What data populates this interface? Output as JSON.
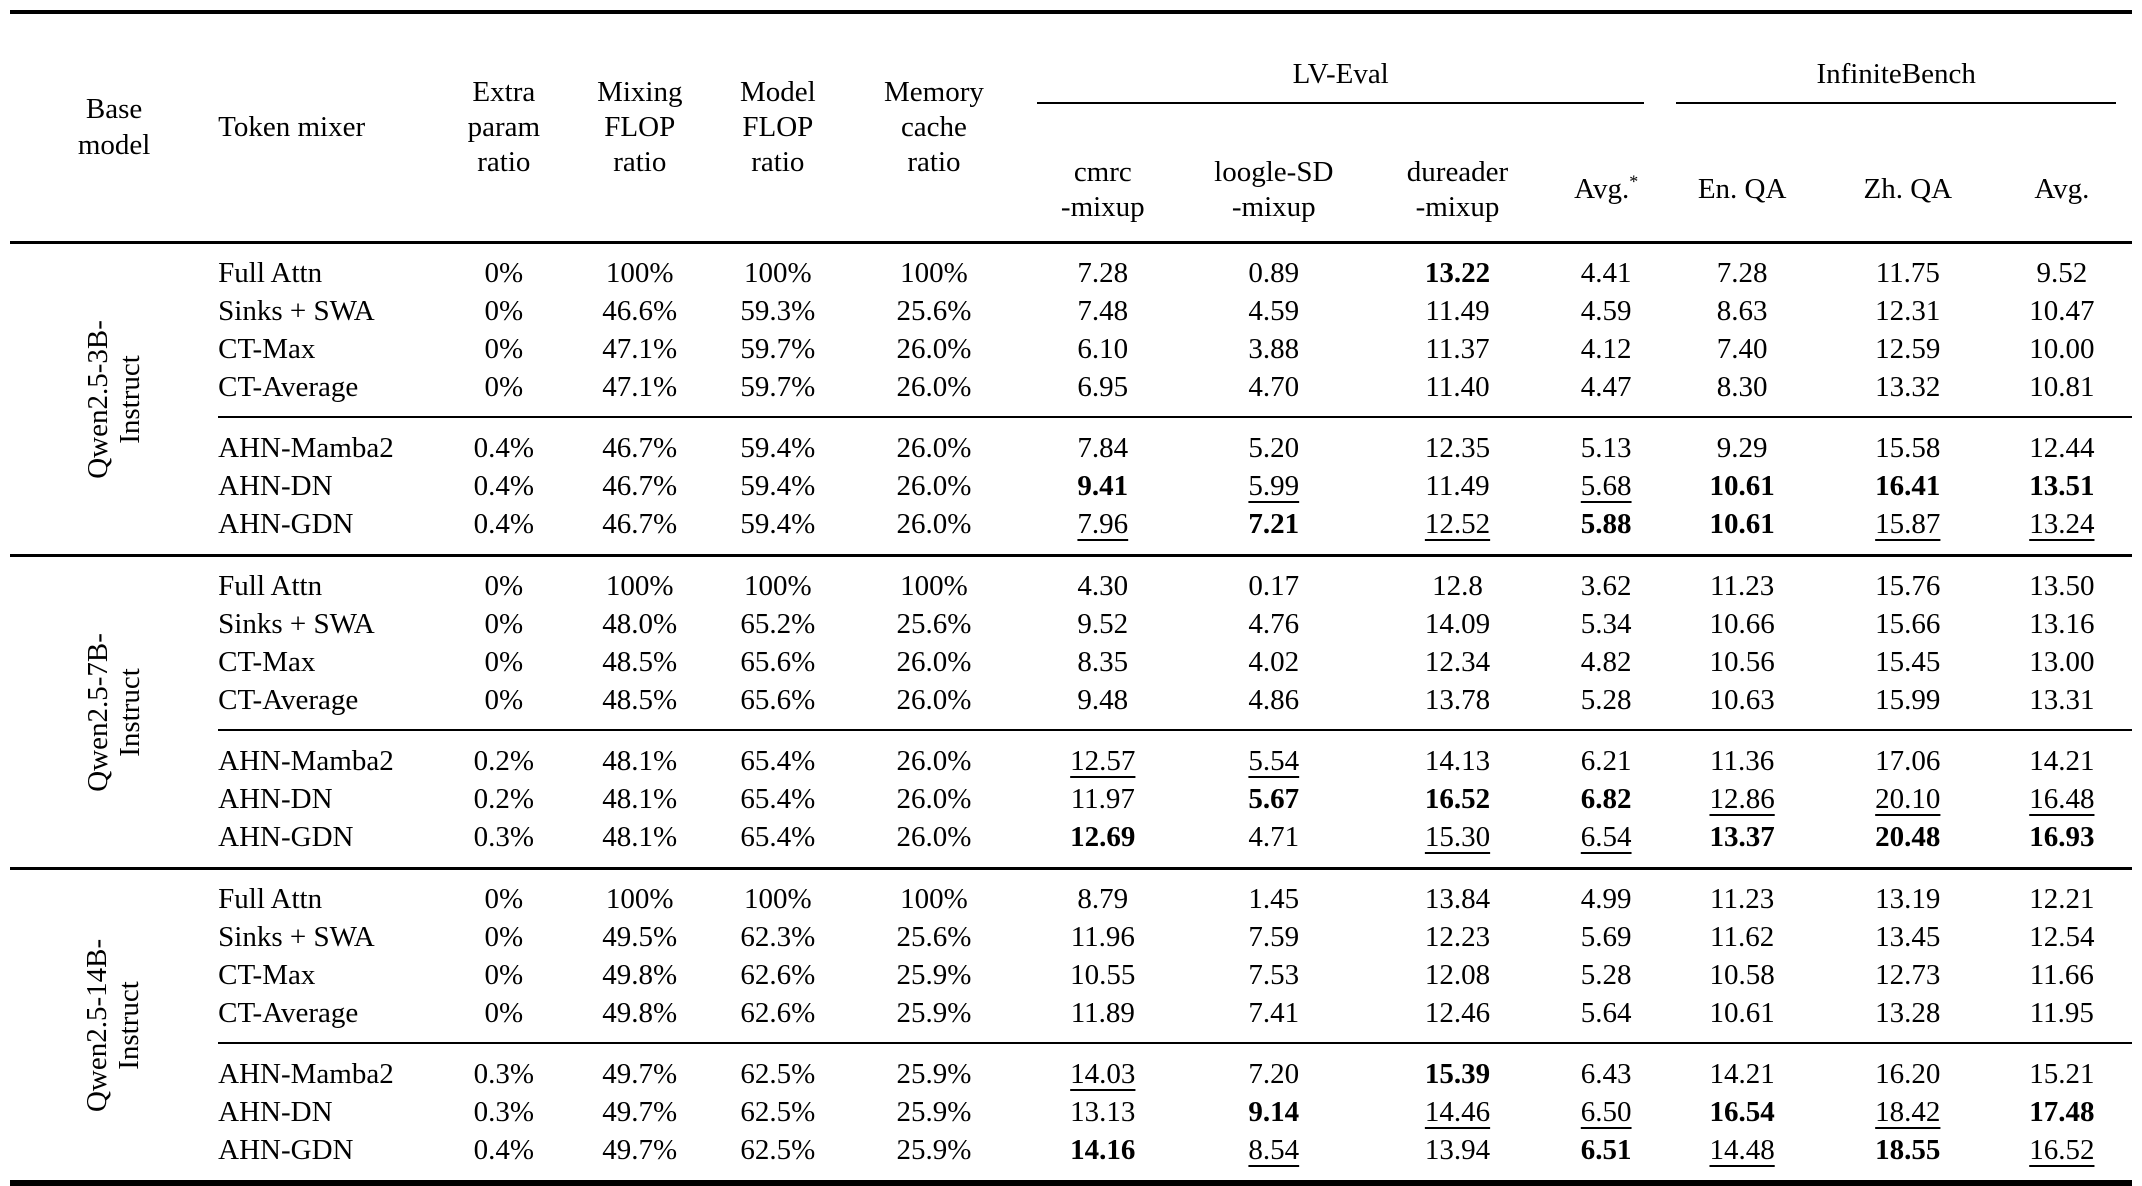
{
  "colors": {
    "text": "#000000",
    "background": "#ffffff",
    "rule": "#000000"
  },
  "header": {
    "base_model": "Base\nmodel",
    "token_mixer": "Token mixer",
    "extra_param": "Extra\nparam\nratio",
    "mixing_flop": "Mixing\nFLOP\nratio",
    "model_flop": "Model\nFLOP\nratio",
    "memory_cache": "Memory\ncache\nratio",
    "group_lv_eval": "LV-Eval",
    "group_infinitebench": "InfiniteBench",
    "lv_eval_cols": [
      "cmrc\n-mixup",
      "loogle-SD\n-mixup",
      "dureader\n-mixup"
    ],
    "avg_star_label": "Avg.",
    "avg_star_sup": "*",
    "ib_cols": [
      "En. QA",
      "Zh. QA",
      "Avg."
    ]
  },
  "groups": [
    {
      "base_model": "Qwen2.5-3B-\nInstruct",
      "rows": [
        {
          "mixer": "Full Attn",
          "cells": [
            [
              "0%"
            ],
            [
              "100%"
            ],
            [
              "100%"
            ],
            [
              "100%"
            ],
            [
              "7.28"
            ],
            [
              "0.89"
            ],
            [
              "13.22",
              "b"
            ],
            [
              "4.41"
            ],
            [
              "7.28"
            ],
            [
              "11.75"
            ],
            [
              "9.52"
            ]
          ]
        },
        {
          "mixer": "Sinks + SWA",
          "cells": [
            [
              "0%"
            ],
            [
              "46.6%"
            ],
            [
              "59.3%"
            ],
            [
              "25.6%"
            ],
            [
              "7.48"
            ],
            [
              "4.59"
            ],
            [
              "11.49"
            ],
            [
              "4.59"
            ],
            [
              "8.63"
            ],
            [
              "12.31"
            ],
            [
              "10.47"
            ]
          ]
        },
        {
          "mixer": "CT-Max",
          "cells": [
            [
              "0%"
            ],
            [
              "47.1%"
            ],
            [
              "59.7%"
            ],
            [
              "26.0%"
            ],
            [
              "6.10"
            ],
            [
              "3.88"
            ],
            [
              "11.37"
            ],
            [
              "4.12"
            ],
            [
              "7.40"
            ],
            [
              "12.59"
            ],
            [
              "10.00"
            ]
          ]
        },
        {
          "mixer": "CT-Average",
          "cells": [
            [
              "0%"
            ],
            [
              "47.1%"
            ],
            [
              "59.7%"
            ],
            [
              "26.0%"
            ],
            [
              "6.95"
            ],
            [
              "4.70"
            ],
            [
              "11.40"
            ],
            [
              "4.47"
            ],
            [
              "8.30"
            ],
            [
              "13.32"
            ],
            [
              "10.81"
            ]
          ]
        },
        {
          "mixer": "AHN-Mamba2",
          "cells": [
            [
              "0.4%"
            ],
            [
              "46.7%"
            ],
            [
              "59.4%"
            ],
            [
              "26.0%"
            ],
            [
              "7.84"
            ],
            [
              "5.20"
            ],
            [
              "12.35"
            ],
            [
              "5.13"
            ],
            [
              "9.29"
            ],
            [
              "15.58"
            ],
            [
              "12.44"
            ]
          ]
        },
        {
          "mixer": "AHN-DN",
          "cells": [
            [
              "0.4%"
            ],
            [
              "46.7%"
            ],
            [
              "59.4%"
            ],
            [
              "26.0%"
            ],
            [
              "9.41",
              "b"
            ],
            [
              "5.99",
              "u"
            ],
            [
              "11.49"
            ],
            [
              "5.68",
              "u"
            ],
            [
              "10.61",
              "b"
            ],
            [
              "16.41",
              "b"
            ],
            [
              "13.51",
              "b"
            ]
          ]
        },
        {
          "mixer": "AHN-GDN",
          "cells": [
            [
              "0.4%"
            ],
            [
              "46.7%"
            ],
            [
              "59.4%"
            ],
            [
              "26.0%"
            ],
            [
              "7.96",
              "u"
            ],
            [
              "7.21",
              "b"
            ],
            [
              "12.52",
              "u"
            ],
            [
              "5.88",
              "b"
            ],
            [
              "10.61",
              "b"
            ],
            [
              "15.87",
              "u"
            ],
            [
              "13.24",
              "u"
            ]
          ]
        }
      ]
    },
    {
      "base_model": "Qwen2.5-7B-\nInstruct",
      "rows": [
        {
          "mixer": "Full Attn",
          "cells": [
            [
              "0%"
            ],
            [
              "100%"
            ],
            [
              "100%"
            ],
            [
              "100%"
            ],
            [
              "4.30"
            ],
            [
              "0.17"
            ],
            [
              "12.8"
            ],
            [
              "3.62"
            ],
            [
              "11.23"
            ],
            [
              "15.76"
            ],
            [
              "13.50"
            ]
          ]
        },
        {
          "mixer": "Sinks + SWA",
          "cells": [
            [
              "0%"
            ],
            [
              "48.0%"
            ],
            [
              "65.2%"
            ],
            [
              "25.6%"
            ],
            [
              "9.52"
            ],
            [
              "4.76"
            ],
            [
              "14.09"
            ],
            [
              "5.34"
            ],
            [
              "10.66"
            ],
            [
              "15.66"
            ],
            [
              "13.16"
            ]
          ]
        },
        {
          "mixer": "CT-Max",
          "cells": [
            [
              "0%"
            ],
            [
              "48.5%"
            ],
            [
              "65.6%"
            ],
            [
              "26.0%"
            ],
            [
              "8.35"
            ],
            [
              "4.02"
            ],
            [
              "12.34"
            ],
            [
              "4.82"
            ],
            [
              "10.56"
            ],
            [
              "15.45"
            ],
            [
              "13.00"
            ]
          ]
        },
        {
          "mixer": "CT-Average",
          "cells": [
            [
              "0%"
            ],
            [
              "48.5%"
            ],
            [
              "65.6%"
            ],
            [
              "26.0%"
            ],
            [
              "9.48"
            ],
            [
              "4.86"
            ],
            [
              "13.78"
            ],
            [
              "5.28"
            ],
            [
              "10.63"
            ],
            [
              "15.99"
            ],
            [
              "13.31"
            ]
          ]
        },
        {
          "mixer": "AHN-Mamba2",
          "cells": [
            [
              "0.2%"
            ],
            [
              "48.1%"
            ],
            [
              "65.4%"
            ],
            [
              "26.0%"
            ],
            [
              "12.57",
              "u"
            ],
            [
              "5.54",
              "u"
            ],
            [
              "14.13"
            ],
            [
              "6.21"
            ],
            [
              "11.36"
            ],
            [
              "17.06"
            ],
            [
              "14.21"
            ]
          ]
        },
        {
          "mixer": "AHN-DN",
          "cells": [
            [
              "0.2%"
            ],
            [
              "48.1%"
            ],
            [
              "65.4%"
            ],
            [
              "26.0%"
            ],
            [
              "11.97"
            ],
            [
              "5.67",
              "b"
            ],
            [
              "16.52",
              "b"
            ],
            [
              "6.82",
              "b"
            ],
            [
              "12.86",
              "u"
            ],
            [
              "20.10",
              "u"
            ],
            [
              "16.48",
              "u"
            ]
          ]
        },
        {
          "mixer": "AHN-GDN",
          "cells": [
            [
              "0.3%"
            ],
            [
              "48.1%"
            ],
            [
              "65.4%"
            ],
            [
              "26.0%"
            ],
            [
              "12.69",
              "b"
            ],
            [
              "4.71"
            ],
            [
              "15.30",
              "u"
            ],
            [
              "6.54",
              "u"
            ],
            [
              "13.37",
              "b"
            ],
            [
              "20.48",
              "b"
            ],
            [
              "16.93",
              "b"
            ]
          ]
        }
      ]
    },
    {
      "base_model": "Qwen2.5-14B-\nInstruct",
      "rows": [
        {
          "mixer": "Full Attn",
          "cells": [
            [
              "0%"
            ],
            [
              "100%"
            ],
            [
              "100%"
            ],
            [
              "100%"
            ],
            [
              "8.79"
            ],
            [
              "1.45"
            ],
            [
              "13.84"
            ],
            [
              "4.99"
            ],
            [
              "11.23"
            ],
            [
              "13.19"
            ],
            [
              "12.21"
            ]
          ]
        },
        {
          "mixer": "Sinks + SWA",
          "cells": [
            [
              "0%"
            ],
            [
              "49.5%"
            ],
            [
              "62.3%"
            ],
            [
              "25.6%"
            ],
            [
              "11.96"
            ],
            [
              "7.59"
            ],
            [
              "12.23"
            ],
            [
              "5.69"
            ],
            [
              "11.62"
            ],
            [
              "13.45"
            ],
            [
              "12.54"
            ]
          ]
        },
        {
          "mixer": "CT-Max",
          "cells": [
            [
              "0%"
            ],
            [
              "49.8%"
            ],
            [
              "62.6%"
            ],
            [
              "25.9%"
            ],
            [
              "10.55"
            ],
            [
              "7.53"
            ],
            [
              "12.08"
            ],
            [
              "5.28"
            ],
            [
              "10.58"
            ],
            [
              "12.73"
            ],
            [
              "11.66"
            ]
          ]
        },
        {
          "mixer": "CT-Average",
          "cells": [
            [
              "0%"
            ],
            [
              "49.8%"
            ],
            [
              "62.6%"
            ],
            [
              "25.9%"
            ],
            [
              "11.89"
            ],
            [
              "7.41"
            ],
            [
              "12.46"
            ],
            [
              "5.64"
            ],
            [
              "10.61"
            ],
            [
              "13.28"
            ],
            [
              "11.95"
            ]
          ]
        },
        {
          "mixer": "AHN-Mamba2",
          "cells": [
            [
              "0.3%"
            ],
            [
              "49.7%"
            ],
            [
              "62.5%"
            ],
            [
              "25.9%"
            ],
            [
              "14.03",
              "u"
            ],
            [
              "7.20"
            ],
            [
              "15.39",
              "b"
            ],
            [
              "6.43"
            ],
            [
              "14.21"
            ],
            [
              "16.20"
            ],
            [
              "15.21"
            ]
          ]
        },
        {
          "mixer": "AHN-DN",
          "cells": [
            [
              "0.3%"
            ],
            [
              "49.7%"
            ],
            [
              "62.5%"
            ],
            [
              "25.9%"
            ],
            [
              "13.13"
            ],
            [
              "9.14",
              "b"
            ],
            [
              "14.46",
              "u"
            ],
            [
              "6.50",
              "u"
            ],
            [
              "16.54",
              "b"
            ],
            [
              "18.42",
              "u"
            ],
            [
              "17.48",
              "b"
            ]
          ]
        },
        {
          "mixer": "AHN-GDN",
          "cells": [
            [
              "0.4%"
            ],
            [
              "49.7%"
            ],
            [
              "62.5%"
            ],
            [
              "25.9%"
            ],
            [
              "14.16",
              "b"
            ],
            [
              "8.54",
              "u"
            ],
            [
              "13.94"
            ],
            [
              "6.51",
              "b"
            ],
            [
              "14.48",
              "u"
            ],
            [
              "18.55",
              "b"
            ],
            [
              "16.52",
              "u"
            ]
          ]
        }
      ]
    }
  ]
}
